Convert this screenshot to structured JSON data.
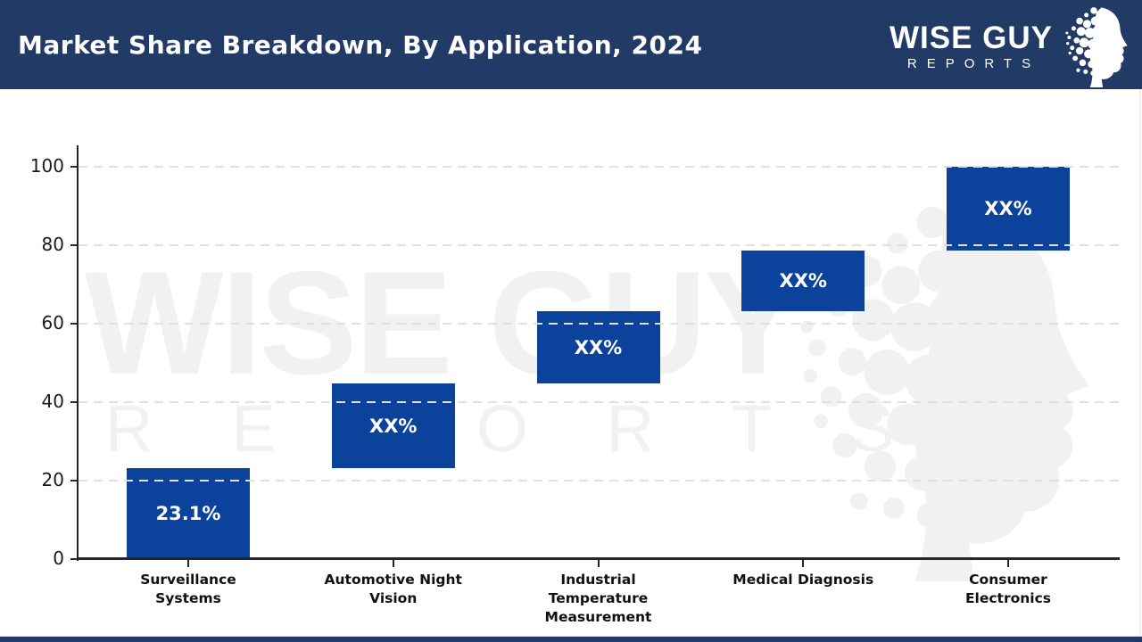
{
  "header": {
    "title": "Market Share Breakdown, By Application, 2024",
    "logo": {
      "name": "WISE GUY",
      "sub": "REPORTS"
    }
  },
  "watermark": {
    "line1": "WISE GUY",
    "line2": "REPORTS"
  },
  "chart_data": {
    "type": "bar",
    "subtype": "floating-waterfall",
    "title": "Market Share Breakdown, By Application, 2024",
    "categories": [
      "Surveillance\nSystems",
      "Automotive Night\nVision",
      "Industrial\nTemperature\nMeasurement",
      "Medical Diagnosis",
      "Consumer\nElectronics"
    ],
    "segments": [
      {
        "category": "Surveillance Systems",
        "start": 0,
        "end": 23.1,
        "label": "23.1%"
      },
      {
        "category": "Automotive Night Vision",
        "start": 23.1,
        "end": 44.6,
        "label": "XX%"
      },
      {
        "category": "Industrial Temperature Measurement",
        "start": 44.6,
        "end": 63.1,
        "label": "XX%"
      },
      {
        "category": "Medical Diagnosis",
        "start": 63.1,
        "end": 78.6,
        "label": "XX%"
      },
      {
        "category": "Consumer Electronics",
        "start": 78.6,
        "end": 100,
        "label": "XX%"
      }
    ],
    "ylim": [
      0,
      100
    ],
    "yticks": [
      0,
      20,
      40,
      60,
      80,
      100
    ],
    "grid": "horizontal-dashed",
    "legend": "none",
    "colors": {
      "bar": "#0b429c",
      "bar_label": "#ffffff",
      "grid": "#e0e0e0",
      "axis": "#262626",
      "tick_label": "#1a1a1a"
    }
  },
  "theme": {
    "header_bg": "#223a66",
    "watermark_color": "#f1f1f1"
  }
}
